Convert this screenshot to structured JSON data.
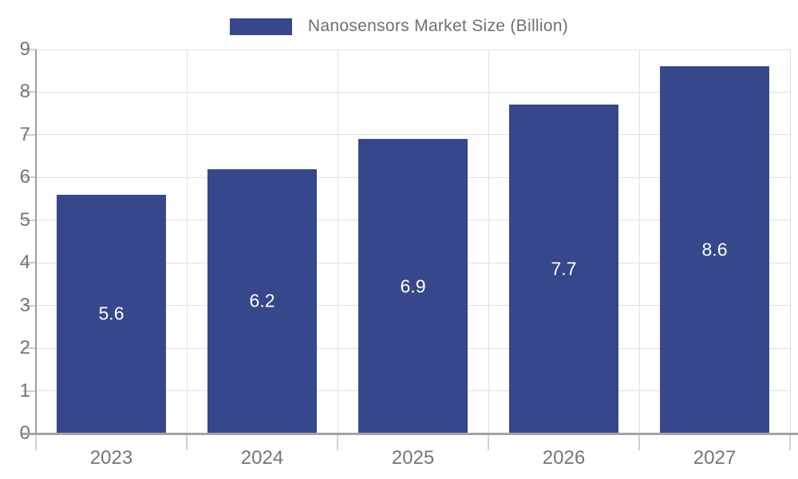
{
  "chart_data": {
    "type": "bar",
    "title": "Nanosensors Market Size (Billion)",
    "legend": [
      {
        "label": "Nanosensors Market Size (Billion)",
        "swatch_color": "#36488B"
      }
    ],
    "categories": [
      "2023",
      "2024",
      "2025",
      "2026",
      "2027"
    ],
    "values": [
      5.6,
      6.2,
      6.9,
      7.7,
      8.6
    ],
    "series": [
      {
        "name": "Nanosensors Market Size (Billion)",
        "values": [
          5.6,
          6.2,
          6.9,
          7.7,
          8.6
        ]
      }
    ],
    "xlabel": "",
    "ylabel": "",
    "ylim": [
      0,
      9
    ],
    "y_ticks": [
      "0",
      "1",
      "2",
      "3",
      "4",
      "5",
      "6",
      "7",
      "8",
      "9"
    ],
    "grid": "horizontal and vertical light gridlines",
    "legend_position": "top-center",
    "data_labels": [
      "5.6",
      "6.2",
      "6.9",
      "7.7",
      "8.6"
    ],
    "data_label_position": "inside-center"
  },
  "colors": {
    "bar": "#36488B",
    "gridline": "#e0e0e0",
    "axis_line": "#a3a3a3",
    "spine": "#9e9e9e",
    "tick": "#cdcdcd",
    "tick_label": "#757575",
    "legend_text": "#6f6f6f",
    "data_label": "#ffffff",
    "background": "#ffffff"
  }
}
